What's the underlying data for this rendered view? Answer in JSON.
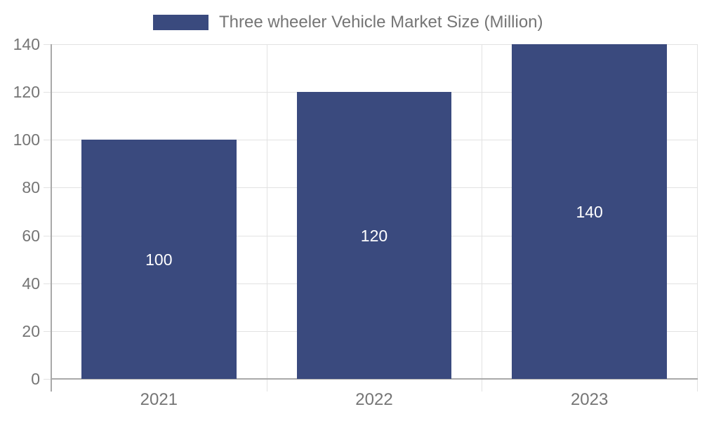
{
  "chart_data": {
    "type": "bar",
    "categories": [
      "2021",
      "2022",
      "2023"
    ],
    "values": [
      100,
      120,
      140
    ],
    "series_name": "Three wheeler Vehicle Market Size (Million)",
    "title": "",
    "xlabel": "",
    "ylabel": "",
    "ylim": [
      0,
      140
    ],
    "yticks": [
      0,
      20,
      40,
      60,
      80,
      100,
      120,
      140
    ],
    "bar_labels": [
      "100",
      "120",
      "140"
    ],
    "grid": true,
    "legend_position": "top-center",
    "bar_label_position": "inside-center"
  },
  "legend": {
    "label": "Three wheeler Vehicle Market Size (Million)"
  },
  "colors": {
    "bar": "#3A4A7E",
    "bar_label": "#FFFFFF",
    "grid": "#E2E2E2",
    "spine": "#A9A9A9",
    "tick_label": "#757575",
    "legend_text": "#757575",
    "background": "#FFFFFF"
  }
}
